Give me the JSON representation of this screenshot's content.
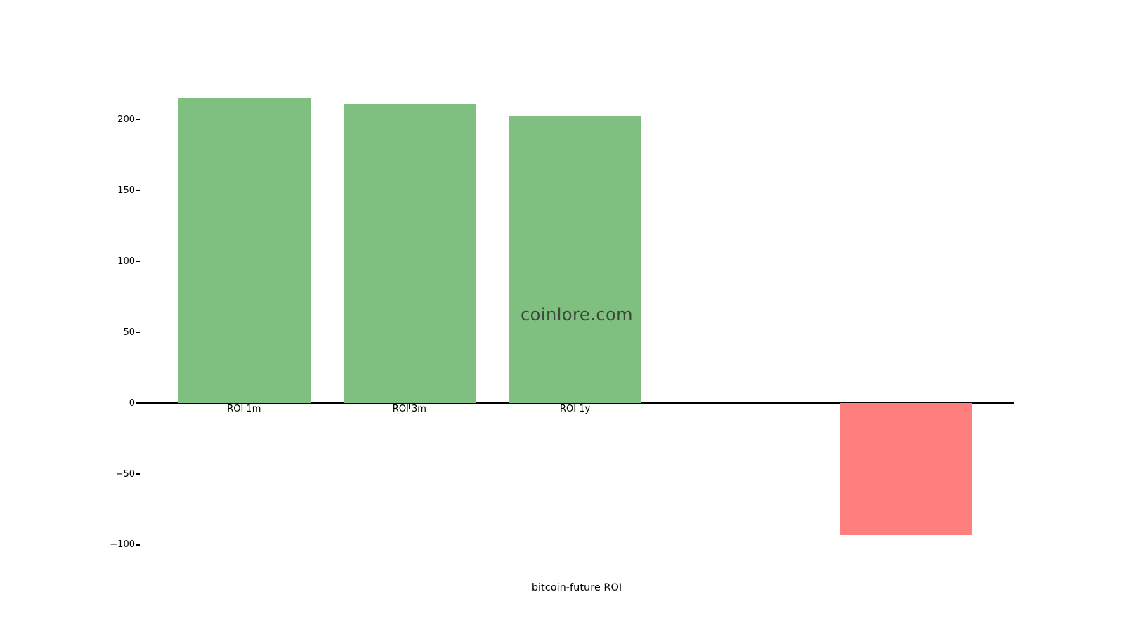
{
  "chart_data": {
    "type": "bar",
    "title": "",
    "xlabel": "bitcoin-future ROI",
    "ylabel": "",
    "watermark": "coinlore.com",
    "categories": [
      "ROI 1m",
      "ROI 3m",
      "ROI 1y",
      ""
    ],
    "x_positions": [
      0,
      1,
      2,
      4
    ],
    "values": [
      215,
      211,
      203,
      -93
    ],
    "bar_colors": [
      "#7fbf7f",
      "#7fbf7f",
      "#7fbf7f",
      "#ff7f7f"
    ],
    "bar_width": 0.8,
    "xlim": [
      -0.625,
      4.65
    ],
    "ylim": [
      -107,
      231
    ],
    "yticks": [
      200,
      150,
      100,
      50,
      0,
      -50,
      -100
    ],
    "ytick_labels": [
      "200",
      "150",
      "100",
      "50",
      "0",
      "−50",
      "−100"
    ],
    "grid": false,
    "legend": null,
    "background_color": "#ffffff",
    "axis_color": "#000000",
    "tick_text_color": "#000000",
    "watermark_color": "#2d2d2d",
    "watermark_opacity": 0.82
  }
}
